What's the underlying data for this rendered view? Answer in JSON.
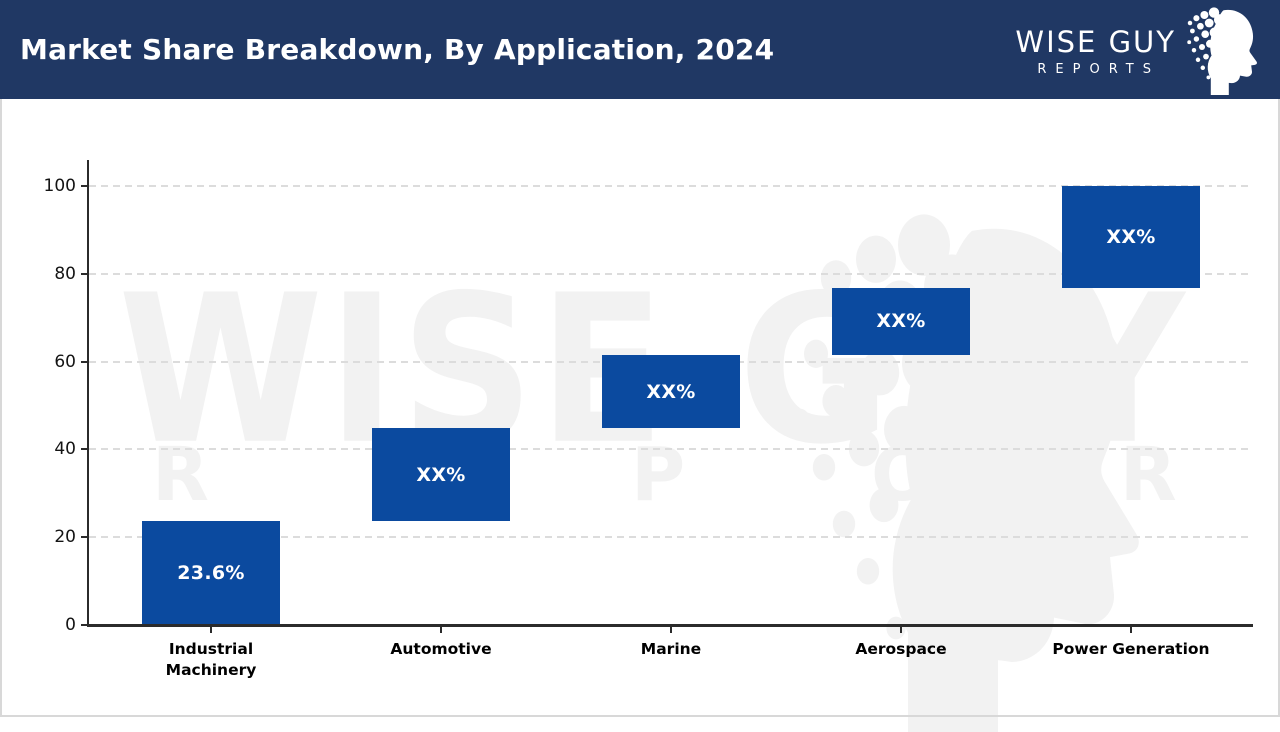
{
  "header": {
    "title": "Market Share Breakdown, By Application, 2024",
    "logo": {
      "wordmark": "WISE GUY",
      "subtitle": "REPORTS"
    }
  },
  "watermark": {
    "wordmark": "WISE GUY",
    "subtitle": "R E P O R T S"
  },
  "colors": {
    "header_bg": "#203864",
    "bar": "#0b4a9f",
    "bar_label": "#ffffff",
    "axis": "#2b2b2b",
    "gridline": "#dcdcdc",
    "tick_label": "#141414",
    "watermark": "#f2f2f2",
    "title_text": "#ffffff"
  },
  "chart_data": {
    "type": "bar",
    "subtype": "waterfall",
    "title": "Market Share Breakdown, By Application, 2024",
    "categories": [
      "Industrial Machinery",
      "Automotive",
      "Marine",
      "Aerospace",
      "Power Generation"
    ],
    "category_lines": [
      [
        "Industrial",
        "Machinery"
      ],
      [
        "Automotive"
      ],
      [
        "Marine"
      ],
      [
        "Aerospace"
      ],
      [
        "Power Generation"
      ]
    ],
    "bars": [
      {
        "category": "Industrial Machinery",
        "label": "23.6%",
        "start": 0,
        "end": 23.6,
        "value": 23.6
      },
      {
        "category": "Automotive",
        "label": "XX%",
        "start": 23.6,
        "end": 44.8,
        "value": 21.2
      },
      {
        "category": "Marine",
        "label": "XX%",
        "start": 44.8,
        "end": 61.5,
        "value": 16.7
      },
      {
        "category": "Aerospace",
        "label": "XX%",
        "start": 61.5,
        "end": 76.8,
        "value": 15.3
      },
      {
        "category": "Power Generation",
        "label": "XX%",
        "start": 76.8,
        "end": 100,
        "value": 23.2
      }
    ],
    "ylim": [
      0,
      100
    ],
    "yticks": [
      0,
      20,
      40,
      60,
      80,
      100
    ],
    "xlabel": "",
    "ylabel": "",
    "grid": "horizontal-dashed",
    "legend": "none"
  }
}
